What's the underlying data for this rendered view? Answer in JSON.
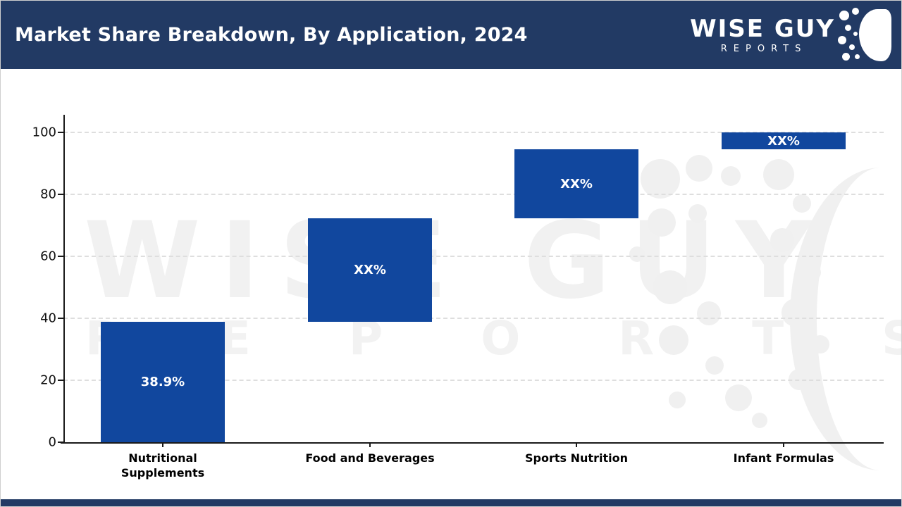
{
  "header": {
    "title": "Market Share Breakdown, By Application, 2024"
  },
  "logo": {
    "line1": "WISE GUY",
    "line2": "REPORTS"
  },
  "watermark": {
    "line1": "WISE GUY",
    "line2": "R E P O R T S"
  },
  "chart_data": {
    "type": "bar",
    "subtype": "waterfall",
    "title": "Market Share Breakdown, By Application, 2024",
    "categories": [
      "Nutritional\nSupplements",
      "Food and Beverages",
      "Sports Nutrition",
      "Infant Formulas"
    ],
    "segments": [
      {
        "category": "Nutritional Supplements",
        "start": 0,
        "end": 38.9,
        "label": "38.9%"
      },
      {
        "category": "Food and Beverages",
        "start": 38.9,
        "end": 72.3,
        "label": "XX%"
      },
      {
        "category": "Sports Nutrition",
        "start": 72.3,
        "end": 94.5,
        "label": "XX%"
      },
      {
        "category": "Infant Formulas",
        "start": 94.5,
        "end": 100,
        "label": "XX%"
      }
    ],
    "xlabel": "",
    "ylabel": "",
    "ylim": [
      0,
      100
    ],
    "yticks": [
      0,
      20,
      40,
      60,
      80,
      100
    ],
    "grid": "horizontal-dashed",
    "legend": "none",
    "bar_color": "#11479e",
    "bar_label_color": "#ffffff"
  },
  "colors": {
    "header_bg": "#223a64",
    "footer_bg": "#223a64",
    "bar": "#11479e",
    "grid": "#dedede",
    "axis": "#1a1a1a",
    "watermark": "#f1f1f1"
  }
}
